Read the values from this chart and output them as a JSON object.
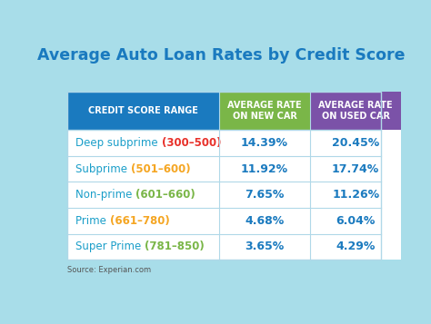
{
  "title": "Average Auto Loan Rates by Credit Score",
  "title_color": "#1a7abf",
  "background_color": "#a8dde9",
  "header_col1_bg": "#1a7abf",
  "header_col2_bg": "#7ab648",
  "header_col3_bg": "#7b52a8",
  "header_text_color": "#ffffff",
  "row_bg_color": "#ffffff",
  "grid_line_color": "#b0d8e8",
  "col1_label": "CREDIT SCORE RANGE",
  "col2_label": "AVERAGE RATE\nON NEW CAR",
  "col3_label": "AVERAGE RATE\nON USED CAR",
  "rows": [
    {
      "label_text": "Deep subprime",
      "label_range": "(300–500)",
      "label_text_color": "#1a9ec9",
      "label_range_color": "#e8312a",
      "new_rate": "14.39%",
      "used_rate": "20.45%"
    },
    {
      "label_text": "Subprime",
      "label_range": "(501–600)",
      "label_text_color": "#1a9ec9",
      "label_range_color": "#f5a623",
      "new_rate": "11.92%",
      "used_rate": "17.74%"
    },
    {
      "label_text": "Non-prime",
      "label_range": "(601–660)",
      "label_text_color": "#1a9ec9",
      "label_range_color": "#7ab648",
      "new_rate": "7.65%",
      "used_rate": "11.26%"
    },
    {
      "label_text": "Prime",
      "label_range": "(661–780)",
      "label_text_color": "#1a9ec9",
      "label_range_color": "#f5a623",
      "new_rate": "4.68%",
      "used_rate": "6.04%"
    },
    {
      "label_text": "Super Prime",
      "label_range": "(781–850)",
      "label_text_color": "#1a9ec9",
      "label_range_color": "#7ab648",
      "new_rate": "3.65%",
      "used_rate": "4.29%"
    }
  ],
  "data_text_color": "#1a7abf",
  "source_text": "Source: Experian.com",
  "source_color": "#555555",
  "label_fontsize": 8.5,
  "rate_fontsize": 9.0,
  "header_fontsize": 7.0
}
